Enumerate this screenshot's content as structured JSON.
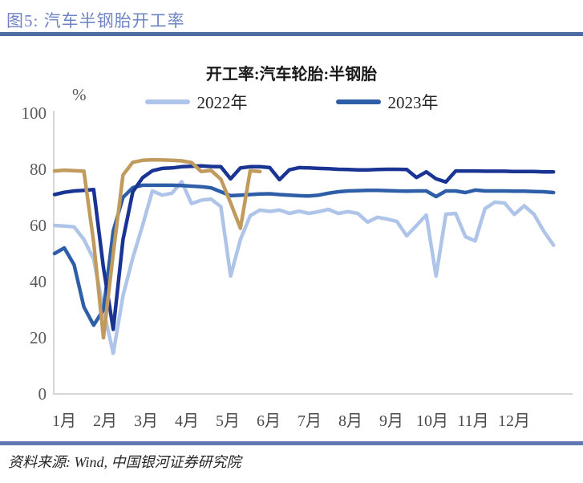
{
  "figure": {
    "title": "图5: 汽车半钢胎开工率"
  },
  "chart": {
    "title": "开工率:汽车轮胎:半钢胎",
    "unit": "%",
    "legend": [
      {
        "label": "2022年",
        "color": "#AEC4E8"
      },
      {
        "label": "2023年",
        "color": "#2F5EA8"
      }
    ]
  },
  "chart_data": {
    "type": "line",
    "title": "开工率:汽车轮胎:半钢胎",
    "ylabel": "%",
    "ylim": [
      0,
      100
    ],
    "y_ticks": [
      0,
      20,
      40,
      60,
      80,
      100
    ],
    "x_categories": [
      "1月",
      "2月",
      "3月",
      "4月",
      "5月",
      "6月",
      "7月",
      "8月",
      "9月",
      "10月",
      "11月",
      "12月"
    ],
    "x_unit": "week-of-year (52 weekly points per series)",
    "grid": false,
    "legend_position": "top-center",
    "series": [
      {
        "name": "2022年",
        "in_legend": true,
        "color": "#AEC4E8",
        "values": [
          60,
          59.8,
          59.5,
          55,
          48,
          30,
          14.5,
          35,
          48.5,
          60,
          72.3,
          70.8,
          71.5,
          75.6,
          67.8,
          69,
          69.4,
          66.7,
          42,
          55,
          63.5,
          65.5,
          65,
          65.5,
          64.3,
          65.1,
          64.3,
          64.9,
          65.7,
          64.3,
          64.9,
          64.3,
          61.2,
          62.9,
          62.3,
          61.4,
          56.3,
          60,
          63.7,
          42,
          64,
          64.3,
          56,
          54.5,
          66,
          68.3,
          68,
          63.9,
          67,
          64,
          58,
          53
        ]
      },
      {
        "name": "2023年",
        "in_legend": true,
        "color": "#2F5EA8",
        "values": [
          50,
          52,
          46,
          31,
          24.5,
          30,
          58,
          70,
          73.5,
          74.3,
          74.3,
          74.3,
          74.3,
          74.2,
          74,
          73.8,
          73.4,
          72,
          70.6,
          70.8,
          71,
          71.2,
          71.3,
          71,
          70.8,
          70.6,
          70.5,
          70.8,
          71.5,
          72,
          72.3,
          72.4,
          72.5,
          72.5,
          72.4,
          72.3,
          72.2,
          72.3,
          72.3,
          70.3,
          72.3,
          72.3,
          71.7,
          72.6,
          72.3,
          72.3,
          72.3,
          72.2,
          72.2,
          72.1,
          72,
          71.7
        ]
      },
      {
        "name": "unlabeled-navy-line",
        "in_legend": false,
        "color": "#1A3493",
        "values": [
          71,
          71.8,
          72.3,
          72.5,
          72.8,
          45,
          23,
          55,
          72,
          77,
          79.5,
          80.3,
          80.5,
          80.9,
          81.1,
          81.2,
          81,
          80.9,
          76.6,
          80.5,
          80.9,
          80.9,
          80.6,
          76.3,
          79.8,
          80.6,
          80.5,
          80.3,
          80.2,
          80,
          79.9,
          79.8,
          79.8,
          79.9,
          80,
          80,
          79.9,
          77.1,
          79.1,
          76.6,
          75.5,
          79.4,
          79.4,
          79.4,
          79.3,
          79.3,
          79.3,
          79.2,
          79.2,
          79.2,
          79.1,
          79.1
        ]
      },
      {
        "name": "unlabeled-tan-line",
        "in_legend": false,
        "color": "#C19A5E",
        "values": [
          79.4,
          79.7,
          79.5,
          79.3,
          54,
          20,
          50,
          78,
          82.5,
          83.2,
          83.4,
          83.3,
          83.2,
          83,
          82.4,
          79.2,
          79.6,
          76.5,
          68,
          59,
          79.5,
          79.2
        ]
      }
    ]
  },
  "source": {
    "text": "资料来源: Wind, 中国银河证券研究院"
  }
}
